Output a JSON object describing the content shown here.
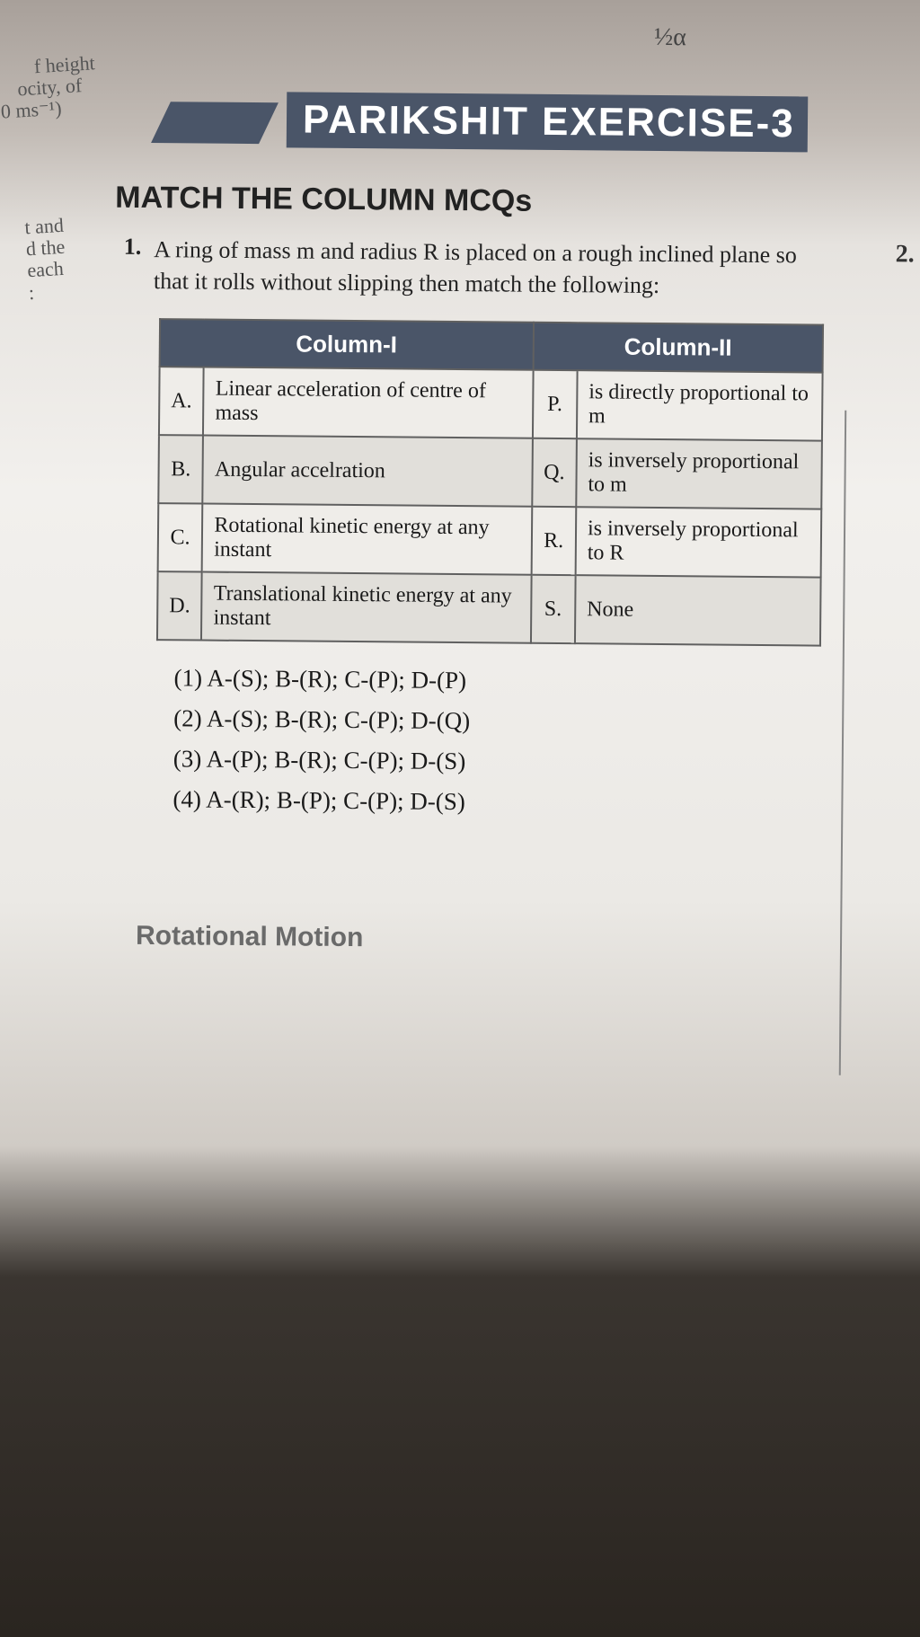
{
  "fragment_top": "½α",
  "spine": {
    "l1": "f height",
    "l2": "ocity, of",
    "l3": "0 ms⁻¹)"
  },
  "spine2": {
    "l1": "t and",
    "l2": "d the",
    "l3": "each",
    "l4": ":"
  },
  "banner": "PARIKSHIT EXERCISE-3",
  "section": "MATCH THE COLUMN MCQs",
  "side_num": "2.",
  "q": {
    "num": "1.",
    "text": "A ring of mass m and radius R is placed on a rough inclined plane so that it rolls without slipping then match the following:"
  },
  "table": {
    "head1": "Column-I",
    "head2": "Column-II",
    "rows": [
      {
        "a": "A.",
        "atext": "Linear acceleration of centre of mass",
        "b": "P.",
        "btext": "is directly proportional to m",
        "shade": false
      },
      {
        "a": "B.",
        "atext": "Angular accelration",
        "b": "Q.",
        "btext": "is inversely proportional to m",
        "shade": true
      },
      {
        "a": "C.",
        "atext": "Rotational kinetic energy at any instant",
        "b": "R.",
        "btext": "is inversely proportional to R",
        "shade": false
      },
      {
        "a": "D.",
        "atext": "Translational kinetic energy at any instant",
        "b": "S.",
        "btext": "None",
        "shade": true
      }
    ]
  },
  "options": [
    "(1)  A-(S); B-(R); C-(P); D-(P)",
    "(2)  A-(S); B-(R); C-(P); D-(Q)",
    "(3)  A-(P); B-(R); C-(P); D-(S)",
    "(4)  A-(R); B-(P); C-(P); D-(S)"
  ],
  "footer": "Rotational Motion"
}
